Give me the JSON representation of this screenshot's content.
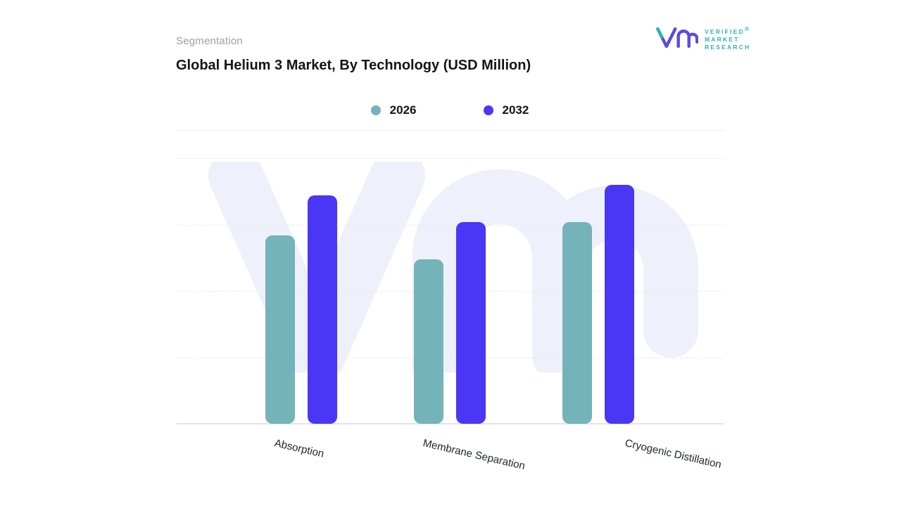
{
  "header": {
    "eyebrow": "Segmentation",
    "title": "Global Helium 3 Market, By Technology (USD Million)"
  },
  "logo": {
    "lines": [
      "VERIFIED",
      "MARKET",
      "RESEARCH"
    ],
    "registered": "®",
    "purple": "#5b4be0",
    "teal": "#2fb2b5"
  },
  "legend": [
    {
      "label": "2026",
      "color": "#74b3b9"
    },
    {
      "label": "2032",
      "color": "#4a36f5"
    }
  ],
  "chart_data": {
    "type": "bar",
    "title": "Global Helium 3 Market, By Technology (USD Million)",
    "categories": [
      "Absorption",
      "Membrane Separation",
      "Cryogenic Distillation"
    ],
    "series": [
      {
        "name": "2026",
        "color": "#74b3b9",
        "values": [
          71,
          62,
          76
        ]
      },
      {
        "name": "2032",
        "color": "#4a36f5",
        "values": [
          86,
          76,
          90
        ]
      }
    ],
    "xlabel": "",
    "ylabel": "",
    "ylim": [
      0,
      100
    ],
    "note": "No numeric axis shown in source; values are relative bar heights (percent of plot height).",
    "grid": "horizontal dashed gridlines",
    "legend_position": "top-center"
  }
}
